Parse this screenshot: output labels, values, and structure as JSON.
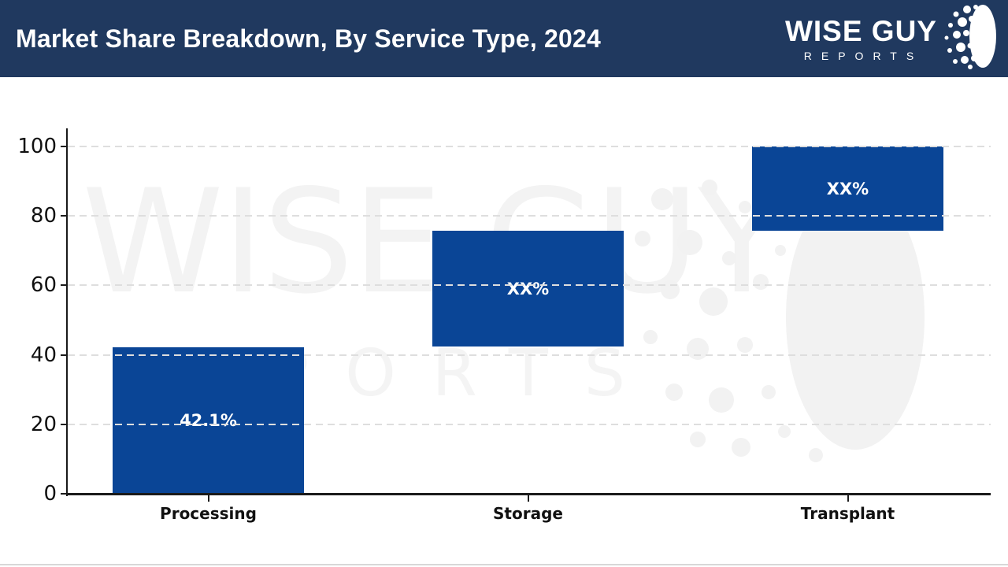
{
  "header": {
    "title": "Market Share Breakdown, By Service Type, 2024",
    "bg_color": "#20395f",
    "logo": {
      "line1": "WISE GUY",
      "line2": "REPORTS"
    }
  },
  "watermark": {
    "line1": "WISE GUY",
    "line2": "REPORTS"
  },
  "chart_data": {
    "type": "bar",
    "subtype": "waterfall (floating segment bars)",
    "title": "Market Share Breakdown, By Service Type, 2024",
    "categories": [
      "Processing",
      "Storage",
      "Transplant"
    ],
    "segments": [
      {
        "category": "Processing",
        "start": 0,
        "end": 42.1,
        "label": "42.1%"
      },
      {
        "category": "Storage",
        "start": 42.4,
        "end": 75.7,
        "label": "XX%"
      },
      {
        "category": "Transplant",
        "start": 75.7,
        "end": 100,
        "label": "XX%"
      }
    ],
    "yticks": [
      0,
      20,
      40,
      60,
      80,
      100
    ],
    "ylim": [
      0,
      105
    ],
    "xlabel": "",
    "ylabel": "",
    "grid": true,
    "grid_style": "dashed",
    "legend": false,
    "bar_color": "#0a4596",
    "bar_label_color": "#ffffff",
    "axis_color": "#1a1a1a",
    "grid_color": "#dedede",
    "tick_label_color": "#111111"
  }
}
